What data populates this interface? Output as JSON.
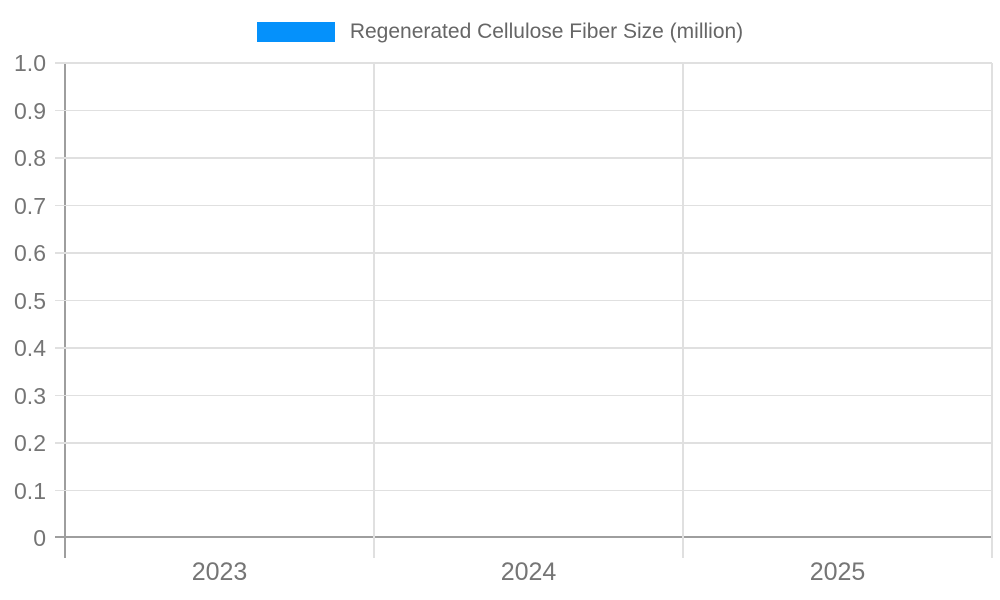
{
  "legend": {
    "label": "Regenerated Cellulose Fiber Size (million)"
  },
  "colors": {
    "series": "#0591fb",
    "legend_text": "#666666",
    "axis_label": "#757575",
    "gridline": "#e0e0e0",
    "axis_line": "#9e9e9e"
  },
  "chart_data": {
    "type": "bar",
    "title": "Regenerated Cellulose Fiber Size (million)",
    "categories": [
      "2023",
      "2024",
      "2025"
    ],
    "series": [
      {
        "name": "Regenerated Cellulose Fiber Size (million)",
        "color": "#0591fb",
        "values": [
          null,
          null,
          null
        ]
      }
    ],
    "xlabel": "",
    "ylabel": "",
    "ylim": [
      0,
      1.0
    ],
    "y_ticks": [
      "0",
      "0.1",
      "0.2",
      "0.3",
      "0.4",
      "0.5",
      "0.6",
      "0.7",
      "0.8",
      "0.9",
      "1.0"
    ],
    "grid": true,
    "legend_position": "top-center",
    "plot_empty": true
  }
}
